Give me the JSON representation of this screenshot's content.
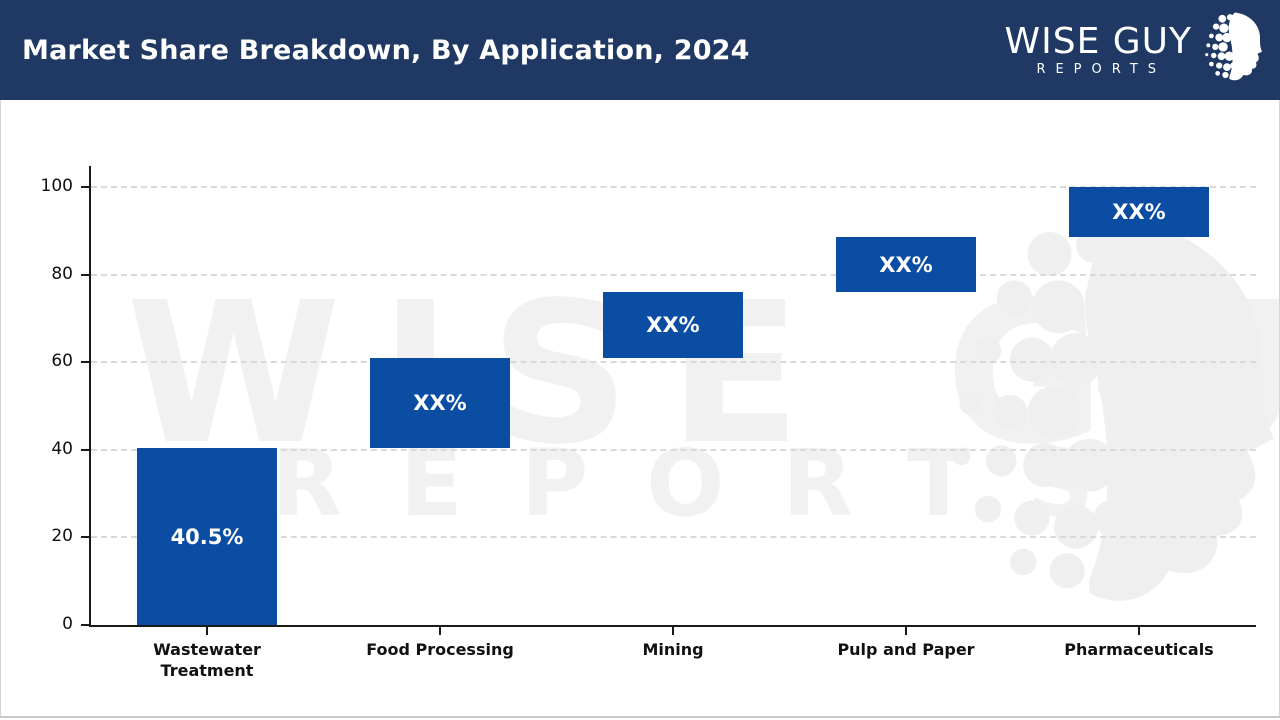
{
  "header": {
    "title": "Market Share Breakdown, By Application, 2024",
    "logo": {
      "line1": "WISE GUY",
      "line2": "REPORTS"
    }
  },
  "watermark": {
    "line1": "WISE GUY",
    "line2": "REPORTS"
  },
  "chart_data": {
    "type": "bar",
    "subtype": "waterfall",
    "title": "Market Share Breakdown, By Application, 2024",
    "categories": [
      "Wastewater Treatment",
      "Food Processing",
      "Mining",
      "Pulp and Paper",
      "Pharmaceuticals"
    ],
    "segments": [
      {
        "category": "Wastewater Treatment",
        "from": 0,
        "to": 40.5,
        "label": "40.5%"
      },
      {
        "category": "Food Processing",
        "from": 40.5,
        "to": 61,
        "label": "XX%"
      },
      {
        "category": "Mining",
        "from": 61,
        "to": 76,
        "label": "XX%"
      },
      {
        "category": "Pulp and Paper",
        "from": 76,
        "to": 88.5,
        "label": "XX%"
      },
      {
        "category": "Pharmaceuticals",
        "from": 88.5,
        "to": 100,
        "label": "XX%"
      }
    ],
    "ylim": [
      0,
      100
    ],
    "yticks": [
      0,
      20,
      40,
      60,
      80,
      100
    ],
    "grid": "horizontal-dashed",
    "legend": "none",
    "bar_color": "#0b4da2",
    "bar_label_color": "#ffffff",
    "header_color": "#1f3864"
  }
}
